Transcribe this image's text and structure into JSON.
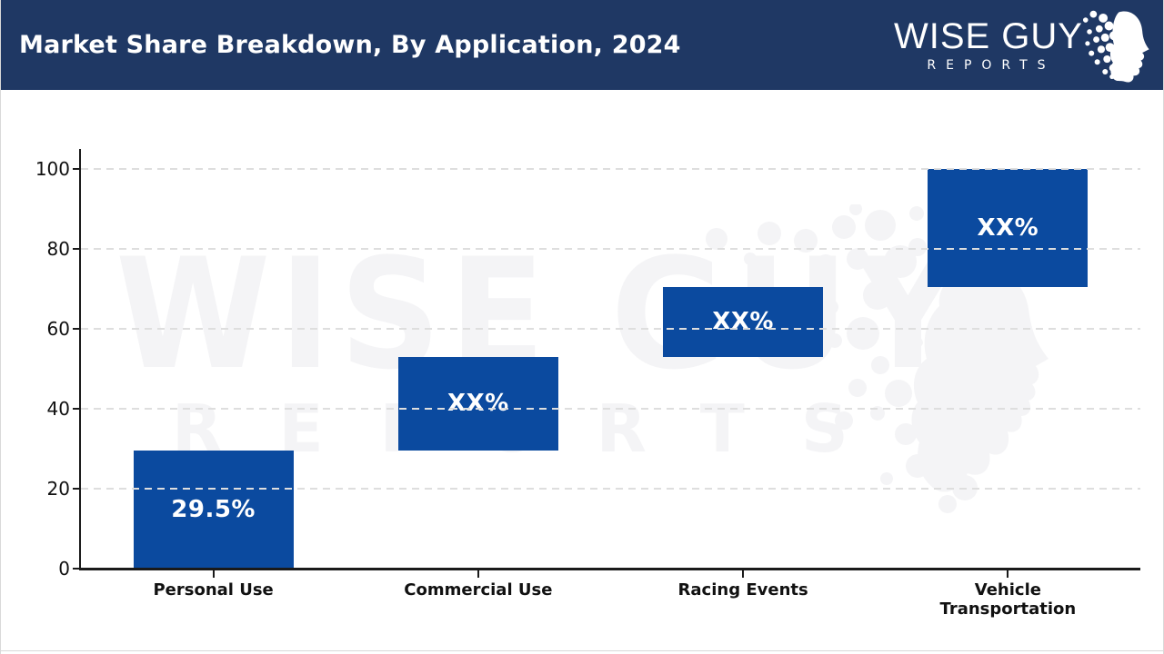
{
  "header": {
    "title": "Market Share Breakdown, By Application, 2024",
    "logo": {
      "wordmark": "WISE GUY",
      "subtitle": "REPORTS"
    }
  },
  "watermark": {
    "wordmark": "WISE GUY",
    "subtitle": "REPORTS"
  },
  "chart_data": {
    "type": "bar",
    "subtype": "floating-waterfall",
    "title": "Market Share Breakdown, By Application, 2024",
    "categories": [
      "Personal Use",
      "Commercial Use",
      "Racing Events",
      "Vehicle Transportation"
    ],
    "segments": [
      {
        "category": "Personal Use",
        "start": 0,
        "end": 29.5,
        "label": "29.5%"
      },
      {
        "category": "Commercial Use",
        "start": 29.5,
        "end": 53,
        "label": "XX%"
      },
      {
        "category": "Racing Events",
        "start": 53,
        "end": 70.5,
        "label": "XX%"
      },
      {
        "category": "Vehicle Transportation",
        "start": 70.5,
        "end": 100,
        "label": "XX%"
      }
    ],
    "y_ticks": [
      0,
      20,
      40,
      60,
      80,
      100
    ],
    "ylim": [
      0,
      105
    ],
    "xlabel": "",
    "ylabel": "",
    "grid": "horizontal-dashed",
    "legend": "none",
    "bar_color": "#0b4a9f",
    "bar_label_color": "#ffffff"
  },
  "colors": {
    "header_bg": "#1f3864",
    "bar": "#0b4a9f",
    "grid": "#dedede",
    "axis": "#1a1a1a",
    "watermark": "#f4f4f6"
  }
}
